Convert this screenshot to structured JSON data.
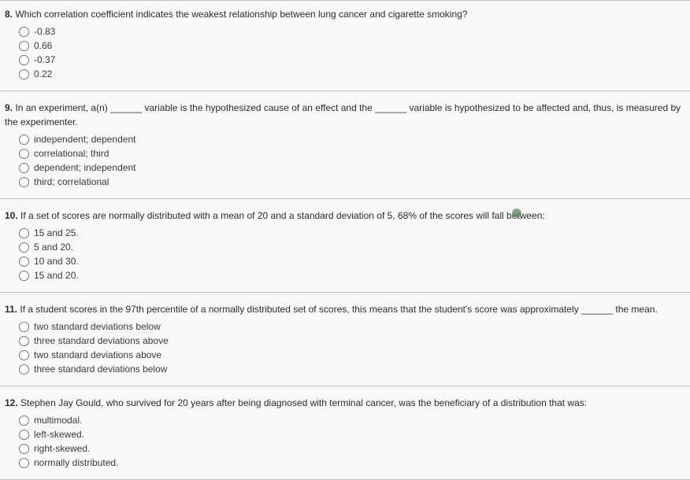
{
  "questions": [
    {
      "num": "8.",
      "text": "Which correlation coefficient indicates the weakest relationship between lung cancer and cigarette smoking?",
      "options": [
        "-0.83",
        "0.66",
        "-0.37",
        "0.22"
      ]
    },
    {
      "num": "9.",
      "text": "In an experiment, a(n) ______ variable is the hypothesized cause of an effect and the ______ variable is hypothesized to be affected and, thus, is measured by the experimenter.",
      "options": [
        "independent; dependent",
        "correlational; third",
        "dependent; independent",
        "third; correlational"
      ]
    },
    {
      "num": "10.",
      "text": "If a set of scores are normally distributed with a mean of 20 and a standard deviation of 5, 68% of the scores will fall between:",
      "options": [
        "15 and 25.",
        "5 and 20.",
        "10 and 30.",
        "15 and 20."
      ],
      "cursor": true
    },
    {
      "num": "11.",
      "text": "If a student scores in the 97th percentile of a normally distributed set of scores, this means that the student's score was approximately ______ the mean.",
      "options": [
        "two standard deviations below",
        "three standard deviations above",
        "two standard deviations above",
        "three standard deviations below"
      ]
    },
    {
      "num": "12.",
      "text": "Stephen Jay Gould, who survived for 20 years after being diagnosed with terminal cancer, was the beneficiary of a distribution that was:",
      "options": [
        "multimodal.",
        "left-skewed.",
        "right-skewed.",
        "normally distributed."
      ]
    }
  ]
}
